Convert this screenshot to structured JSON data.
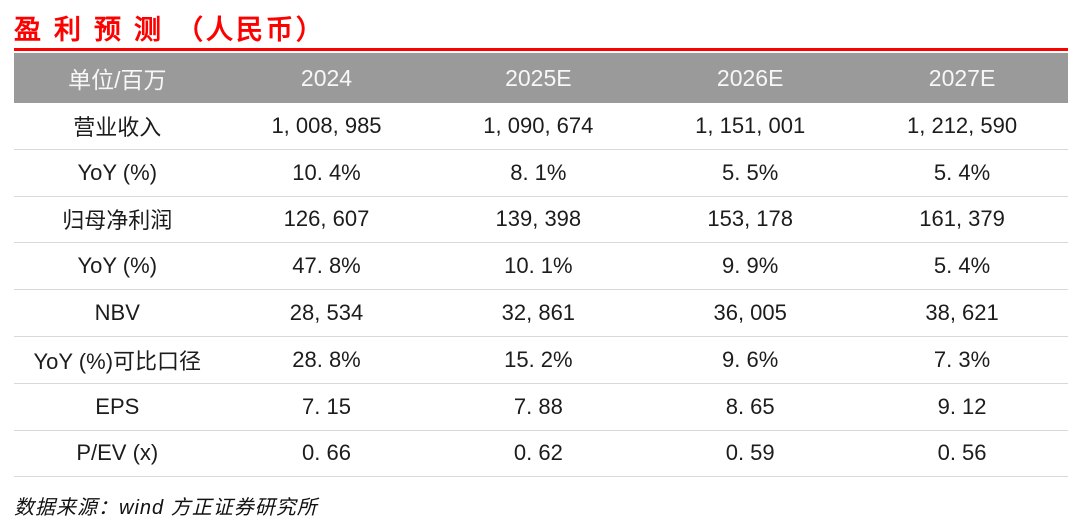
{
  "title": {
    "main": "盈利预测",
    "unit_note": "（人民币）"
  },
  "table": {
    "header": {
      "col0": "单位/百万",
      "col1": "2024",
      "col2": "2025E",
      "col3": "2026E",
      "col4": "2027E"
    },
    "rows": [
      {
        "label": "营业收入",
        "values": [
          "1, 008, 985",
          "1, 090, 674",
          "1, 151, 001",
          "1, 212, 590"
        ]
      },
      {
        "label": "YoY (%)",
        "values": [
          "10. 4%",
          "8. 1%",
          "5. 5%",
          "5. 4%"
        ]
      },
      {
        "label": "归母净利润",
        "values": [
          "126, 607",
          "139, 398",
          "153, 178",
          "161, 379"
        ]
      },
      {
        "label": "YoY (%)",
        "values": [
          "47. 8%",
          "10. 1%",
          "9. 9%",
          "5. 4%"
        ]
      },
      {
        "label": "NBV",
        "values": [
          "28, 534",
          "32, 861",
          "36, 005",
          "38, 621"
        ]
      },
      {
        "label": "YoY (%)可比口径",
        "values": [
          "28. 8%",
          "15. 2%",
          "9. 6%",
          "7. 3%"
        ]
      },
      {
        "label": "EPS",
        "values": [
          "7. 15",
          "7. 88",
          "8. 65",
          "9. 12"
        ]
      },
      {
        "label": "P/EV (x)",
        "values": [
          "0. 66",
          "0. 62",
          "0. 59",
          "0. 56"
        ]
      }
    ]
  },
  "footer": {
    "source": "数据来源：wind 方正证券研究所"
  },
  "colors": {
    "accent_red": "#fd0000",
    "header_bg": "#9a9a9a",
    "header_text": "#f7f7f7",
    "body_text": "#1c1c1c",
    "row_divider": "#d9d9d9"
  }
}
